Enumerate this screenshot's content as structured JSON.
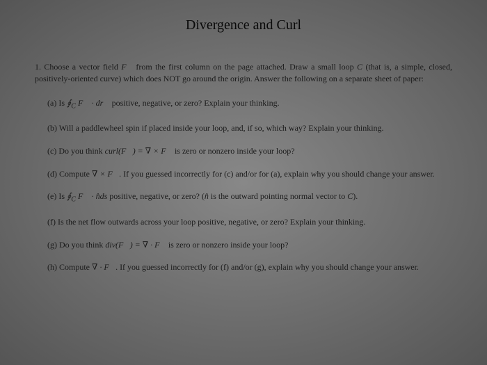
{
  "document": {
    "title": "Divergence and Curl",
    "background_gradient": [
      "#888888",
      "#555555"
    ],
    "text_color": "#1a1a1a",
    "font_family": "Times New Roman",
    "title_fontsize": 20,
    "body_fontsize": 12,
    "problem_number": "1.",
    "intro_part1": "Choose a vector field ",
    "intro_vec": "F⃗",
    "intro_part2": " from the first column on the page attached. Draw a small loop ",
    "intro_curve": "C",
    "intro_part3": " (that is, a simple, closed, positively-oriented curve) which does NOT go around the origin. Answer the following on a separate sheet of paper:",
    "parts": {
      "a": {
        "label": "(a)",
        "text_pre": "Is ",
        "math": "∮_C F⃗ · dr⃗",
        "text_post": " positive, negative, or zero? Explain your thinking."
      },
      "b": {
        "label": "(b)",
        "text": "Will a paddlewheel spin if placed inside your loop, and, if so, which way? Explain your thinking."
      },
      "c": {
        "label": "(c)",
        "text_pre": "Do you think ",
        "math": "curl(F⃗) = ∇ × F⃗",
        "text_post": " is zero or nonzero inside your loop?"
      },
      "d": {
        "label": "(d)",
        "text_pre": "Compute ",
        "math": "∇ × F⃗",
        "text_post": ". If you guessed incorrectly for (c) and/or for (a), explain why you should change your answer."
      },
      "e": {
        "label": "(e)",
        "text_pre": "Is ",
        "math": "∮_C F⃗ · n̂ds",
        "text_mid": " positive, negative, or zero? (",
        "math2": "n̂",
        "text_post": " is the outward pointing normal vector to ",
        "math3": "C",
        "text_end": ")."
      },
      "f": {
        "label": "(f)",
        "text": "Is the net flow outwards across your loop positive, negative, or zero? Explain your thinking."
      },
      "g": {
        "label": "(g)",
        "text_pre": "Do you think ",
        "math": "div(F⃗) = ∇ · F⃗",
        "text_post": " is zero or nonzero inside your loop?"
      },
      "h": {
        "label": "(h)",
        "text_pre": "Compute ",
        "math": "∇ · F⃗",
        "text_post": ". If you guessed incorrectly for (f) and/or (g), explain why you should change your answer."
      }
    }
  }
}
